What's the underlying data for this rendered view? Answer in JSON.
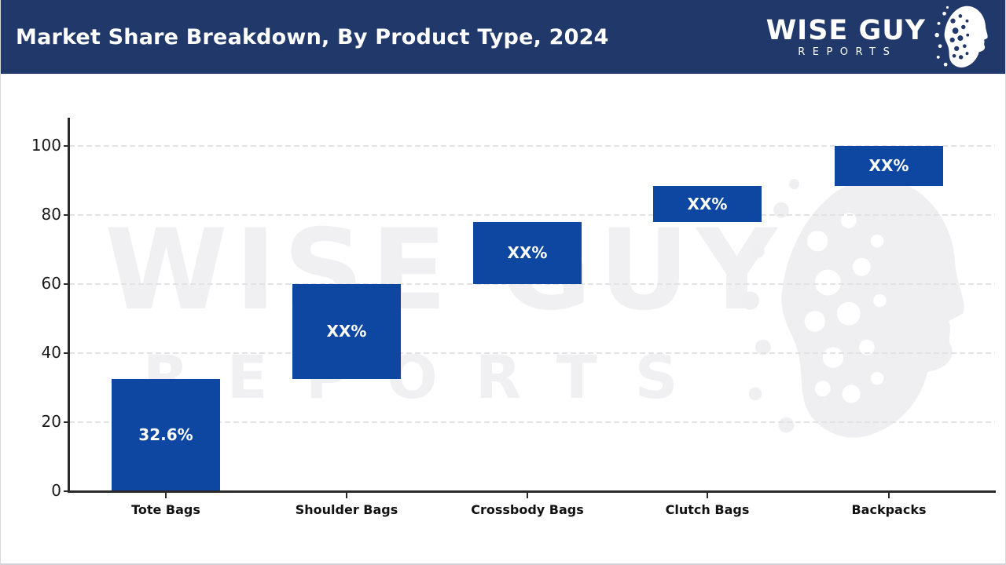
{
  "header": {
    "title": "Market Share Breakdown, By Product Type, 2024",
    "logo": {
      "wordmark": "WISE GUY",
      "subtext": "REPORTS"
    }
  },
  "watermark": {
    "line1": "WISE GUY",
    "line2": "REPORTS"
  },
  "colors": {
    "header_bg": "#21386b",
    "bar_blue": "#0d47a1",
    "watermark_gray": "#f0f0f2",
    "axis_dark": "#2a2a2a",
    "gridline_gray": "#e3e3e6"
  },
  "chart_data": {
    "type": "bar",
    "subtype": "waterfall",
    "title": "Market Share Breakdown, By Product Type, 2024",
    "xlabel": "",
    "ylabel": "",
    "ylim": [
      0,
      105
    ],
    "yticks": [
      0,
      20,
      40,
      60,
      80,
      100
    ],
    "grid": "horizontal-dashed",
    "legend": "none",
    "categories": [
      "Tote Bags",
      "Shoulder Bags",
      "Crossbody Bags",
      "Clutch Bags",
      "Backpacks"
    ],
    "segments": [
      {
        "category": "Tote Bags",
        "start": 0,
        "end": 32.6,
        "label": "32.6%"
      },
      {
        "category": "Shoulder Bags",
        "start": 32.6,
        "end": 60,
        "label": "XX%"
      },
      {
        "category": "Crossbody Bags",
        "start": 60,
        "end": 78,
        "label": "XX%"
      },
      {
        "category": "Clutch Bags",
        "start": 78,
        "end": 88.5,
        "label": "XX%"
      },
      {
        "category": "Backpacks",
        "start": 88.5,
        "end": 100,
        "label": "XX%"
      }
    ]
  }
}
